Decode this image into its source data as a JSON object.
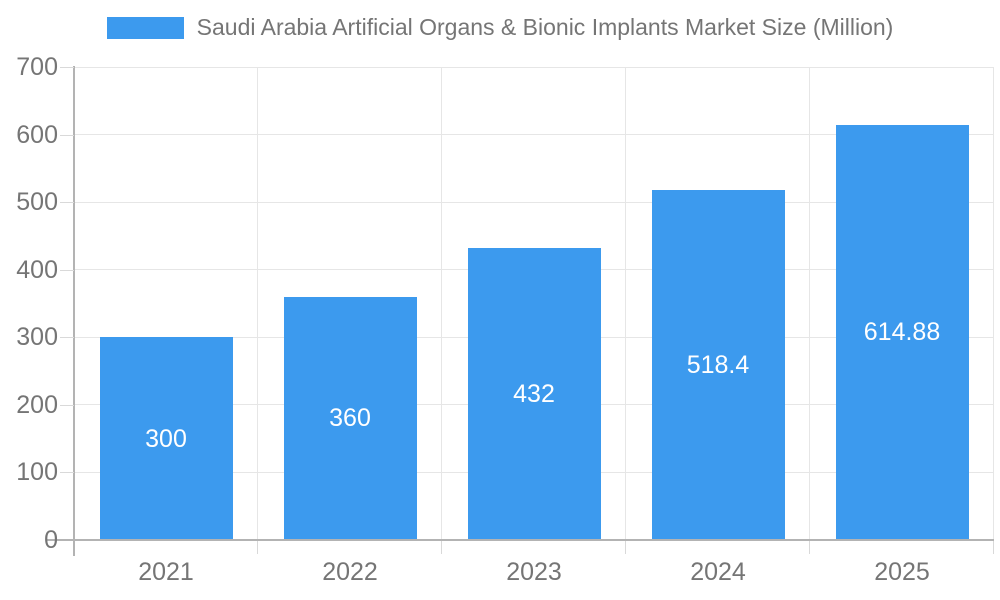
{
  "colors": {
    "bar": "#3C9AEE",
    "grid": "#E6E6E6",
    "tick": "#D9D9D9",
    "axis": "#B3B3B3",
    "text": "#757575",
    "data_label": "#FFFFFF",
    "background": "#FFFFFF"
  },
  "chart_data": {
    "type": "bar",
    "title": "",
    "legend": [
      "Saudi Arabia Artificial Organs & Bionic Implants Market Size (Million)"
    ],
    "legend_position": "top-center",
    "categories": [
      "2021",
      "2022",
      "2023",
      "2024",
      "2025"
    ],
    "series": [
      {
        "name": "Saudi Arabia Artificial Organs & Bionic Implants Market Size (Million)",
        "values": [
          300,
          360,
          432,
          518.4,
          614.88
        ]
      }
    ],
    "data_labels": [
      "300",
      "360",
      "432",
      "518.4",
      "614.88"
    ],
    "data_label_position": "inside-center",
    "xlabel": "",
    "ylabel": "",
    "ylim": [
      0,
      700
    ],
    "yticks": [
      0,
      100,
      200,
      300,
      400,
      500,
      600,
      700
    ],
    "grid": true
  }
}
